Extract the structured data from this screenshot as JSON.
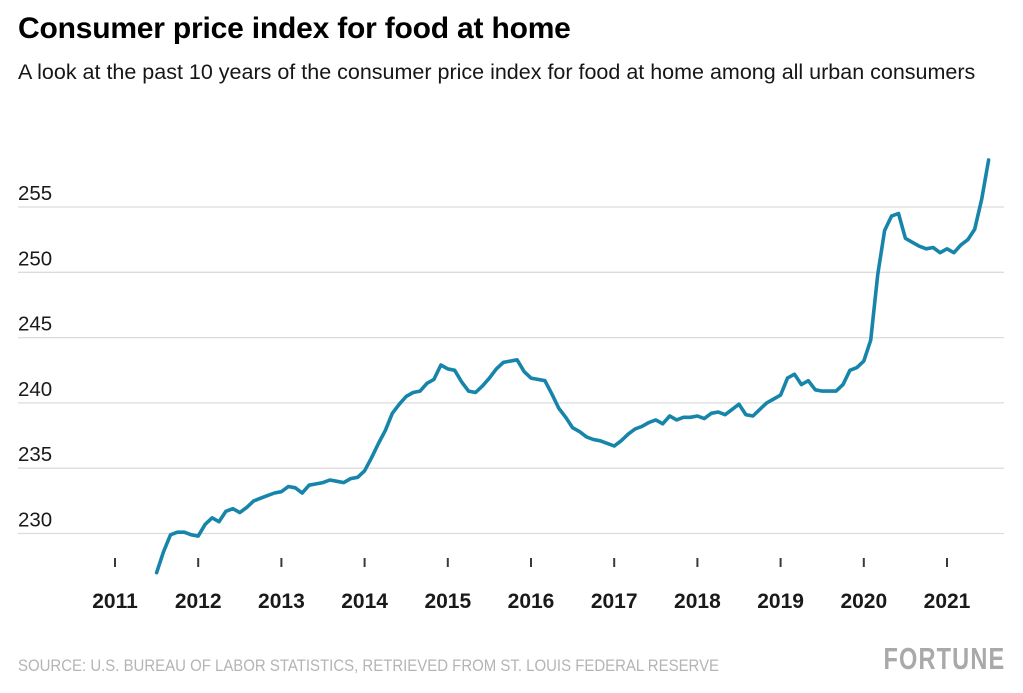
{
  "header": {
    "title": "Consumer price index for food at home",
    "subtitle": "A look at the past 10 years of the consumer price index for food at home among all urban consumers"
  },
  "chart_data": {
    "type": "line",
    "title": "Consumer price index for food at home",
    "line_color": "#1785aa",
    "grid": "horizontal-only",
    "gridline_color": "#dcdcdc",
    "tick_color": "#3a3a3a",
    "label_color": "#1a1a1a",
    "y_ticks": [
      230,
      235,
      240,
      245,
      250,
      255
    ],
    "x_ticks": [
      "2011",
      "2012",
      "2013",
      "2014",
      "2015",
      "2016",
      "2017",
      "2018",
      "2019",
      "2020",
      "2021"
    ],
    "ylim": [
      226.5,
      259.2
    ],
    "xlim_year_fraction": [
      2011.0,
      2021.7
    ],
    "legend": "none",
    "series": [
      {
        "name": "CPI for food at home, all urban consumers",
        "start_month": "2011-07",
        "frequency": "monthly",
        "values": [
          227.0,
          228.6,
          229.9,
          230.1,
          230.1,
          229.9,
          229.8,
          230.7,
          231.2,
          230.9,
          231.7,
          231.9,
          231.6,
          232.0,
          232.5,
          232.7,
          232.9,
          233.1,
          233.2,
          233.6,
          233.5,
          233.1,
          233.7,
          233.8,
          233.9,
          234.1,
          234.0,
          233.9,
          234.2,
          234.3,
          234.8,
          235.8,
          236.9,
          237.9,
          239.2,
          239.9,
          240.5,
          240.8,
          240.9,
          241.5,
          241.8,
          242.9,
          242.6,
          242.5,
          241.6,
          240.9,
          240.8,
          241.3,
          241.9,
          242.6,
          243.1,
          243.2,
          243.3,
          242.4,
          241.9,
          241.8,
          241.7,
          240.7,
          239.6,
          238.9,
          238.1,
          237.8,
          237.4,
          237.2,
          237.1,
          236.9,
          236.7,
          237.1,
          237.6,
          238.0,
          238.2,
          238.5,
          238.7,
          238.4,
          239.0,
          238.7,
          238.9,
          238.9,
          239.0,
          238.8,
          239.2,
          239.3,
          239.1,
          239.5,
          239.9,
          239.1,
          239.0,
          239.5,
          240.0,
          240.3,
          240.6,
          241.9,
          242.2,
          241.4,
          241.7,
          241.0,
          240.9,
          240.9,
          240.9,
          241.4,
          242.5,
          242.7,
          243.2,
          244.8,
          249.8,
          253.2,
          254.3,
          254.5,
          252.6,
          252.3,
          252.0,
          251.8,
          251.9,
          251.5,
          251.8,
          251.5,
          252.1,
          252.5,
          253.3,
          255.6,
          258.6
        ]
      }
    ]
  },
  "footer": {
    "source": "SOURCE: U.S. BUREAU OF LABOR STATISTICS, RETRIEVED FROM ST. LOUIS FEDERAL RESERVE",
    "logo": "FORTUNE"
  }
}
